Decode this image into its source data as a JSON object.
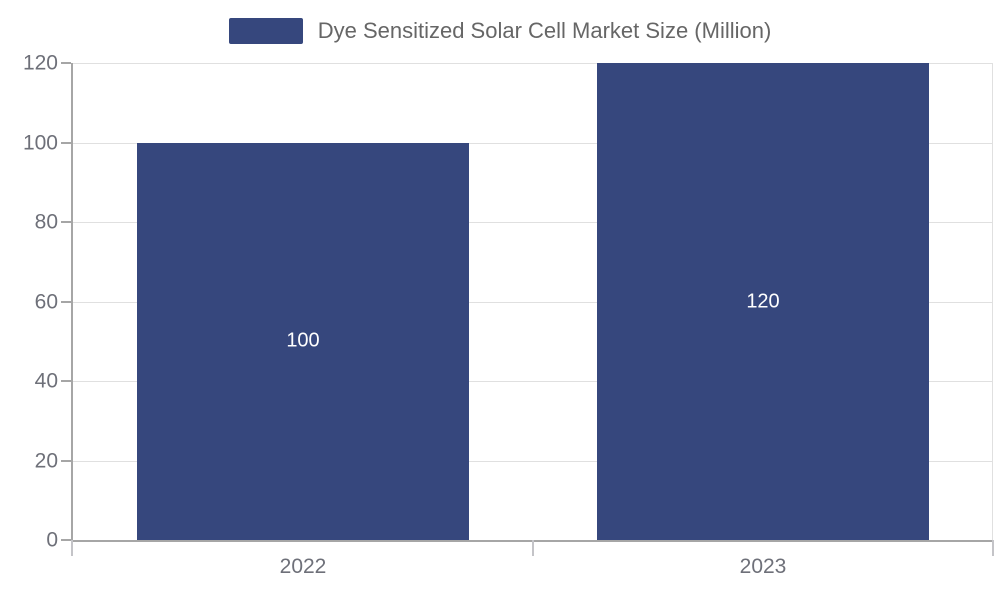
{
  "chart_data": {
    "type": "bar",
    "title": "",
    "legend": "Dye Sensitized Solar Cell Market Size (Million)",
    "legend_position": "top-center",
    "categories": [
      "2022",
      "2023"
    ],
    "series": [
      {
        "name": "Dye Sensitized Solar Cell Market Size (Million)",
        "values": [
          100,
          120
        ]
      }
    ],
    "value_labels": [
      "100",
      "120"
    ],
    "value_label_position": "inside-middle",
    "xlabel": "",
    "ylabel": "",
    "ylim": [
      0,
      120
    ],
    "ytick_step": 20,
    "yticks": [
      0,
      20,
      40,
      60,
      80,
      100,
      120
    ],
    "grid": true
  },
  "colors": {
    "bar": "#36477d",
    "legend_text": "#666666",
    "axis_line": "#a6a6a6",
    "grid_line": "#e0e0e0",
    "tick_label": "#6e7079",
    "value_label": "#ffffff"
  }
}
